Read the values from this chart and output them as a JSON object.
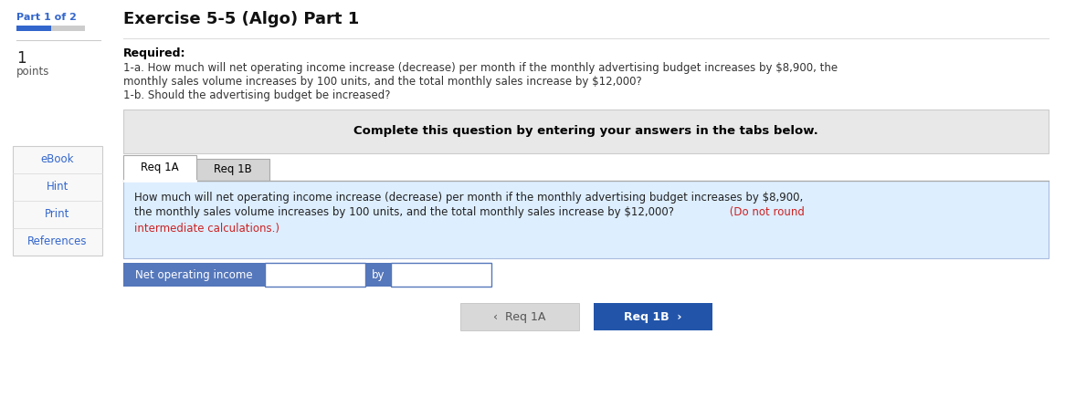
{
  "title": "Exercise 5-5 (Algo) Part 1",
  "part_label": "Part 1 of 2",
  "points_number": "1",
  "points_label": "points",
  "sidebar_links": [
    "eBook",
    "Hint",
    "Print",
    "References"
  ],
  "required_label": "Required:",
  "req_text_1a_line1": "1-a. How much will net operating income increase (decrease) per month if the monthly advertising budget increases by $8,900, the",
  "req_text_1a_line2": "monthly sales volume increases by 100 units, and the total monthly sales increase by $12,000?",
  "req_text_1b": "1-b. Should the advertising budget be increased?",
  "complete_text": "Complete this question by entering your answers in the tabs below.",
  "tab1": "Req 1A",
  "tab2": "Req 1B",
  "body_line1": "How much will net operating income increase (decrease) per month if the monthly advertising budget increases by $8,900,",
  "body_line2_black": "the monthly sales volume increases by 100 units, and the total monthly sales increase by $12,000?",
  "body_line2_red": " (Do not round",
  "body_line3_red": "intermediate calculations.)",
  "input_label": "Net operating income",
  "by_text": "by",
  "btn_back_text": "‹  Req 1A",
  "btn_next_text": "Req 1B  ›",
  "bg_color": "#ffffff",
  "gray_box_bg": "#e8e8e8",
  "blue_box_bg": "#ddeeff",
  "tab_active_bg": "#ffffff",
  "tab_inactive_bg": "#d4d4d4",
  "tab_border": "#aaaaaa",
  "input_bg": "#ffffff",
  "input_border_color": "#5577bb",
  "label_bg": "#5577bb",
  "label_text_color": "#ffffff",
  "by_bg": "#5577bb",
  "btn_back_bg": "#d8d8d8",
  "btn_next_bg": "#2255aa",
  "btn_text_color": "#ffffff",
  "btn_back_text_color": "#555555",
  "part_color": "#3366cc",
  "sidebar_link_color": "#3366cc",
  "red_color": "#cc2222",
  "title_color": "#111111",
  "body_text_color": "#222222",
  "progress_filled": "#3366cc",
  "progress_empty": "#cccccc",
  "sidebar_box_border": "#dddddd",
  "sidebar_outer_border": "#cccccc"
}
